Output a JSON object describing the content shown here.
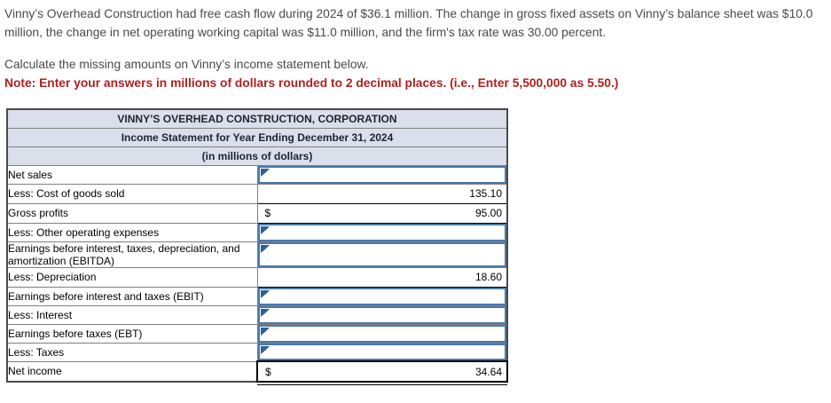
{
  "intro": {
    "paragraph": "Vinny’s Overhead Construction had free cash flow during 2024 of $36.1 million. The change in gross fixed assets on Vinny’s balance sheet was $10.0 million, the change in net operating working capital was $11.0 million, and the firm's tax rate was 30.00 percent.",
    "instruction": "Calculate the missing amounts on Vinny’s income statement below.",
    "note": "Note: Enter your answers in millions of dollars rounded to 2 decimal places. (i.e., Enter 5,500,000 as 5.50.)"
  },
  "table": {
    "title": "VINNY’S OVERHEAD CONSTRUCTION, CORPORATION",
    "subtitle": "Income Statement for Year Ending December 31, 2024",
    "units": "(in millions of dollars)",
    "rows": [
      {
        "key": "net-sales",
        "label": "Net sales",
        "type": "input",
        "currency": "",
        "value": ""
      },
      {
        "key": "cost-of-goods-sold",
        "label": "Less: Cost of goods sold",
        "type": "static",
        "currency": "",
        "value": "135.10"
      },
      {
        "key": "gross-profits",
        "label": "Gross profits",
        "type": "dollar",
        "currency": "$",
        "value": "95.00"
      },
      {
        "key": "other-operating-expenses",
        "label": "Less: Other operating expenses",
        "type": "input",
        "currency": "",
        "value": ""
      },
      {
        "key": "ebitda",
        "label": "Earnings before interest, taxes, depreciation, and amortization (EBITDA)",
        "type": "input",
        "currency": "",
        "value": ""
      },
      {
        "key": "depreciation",
        "label": "Less: Depreciation",
        "type": "static",
        "currency": "",
        "value": "18.60"
      },
      {
        "key": "ebit",
        "label": "Earnings before interest and taxes (EBIT)",
        "type": "input",
        "currency": "",
        "value": ""
      },
      {
        "key": "interest",
        "label": "Less: Interest",
        "type": "input",
        "currency": "",
        "value": ""
      },
      {
        "key": "ebt",
        "label": "Earnings before taxes (EBT)",
        "type": "input",
        "currency": "",
        "value": ""
      },
      {
        "key": "taxes",
        "label": "Less: Taxes",
        "type": "input",
        "currency": "",
        "value": ""
      },
      {
        "key": "net-income",
        "label": "Net income",
        "type": "total",
        "currency": "$",
        "value": "34.64"
      }
    ]
  },
  "colors": {
    "page-bg": "#ffffff",
    "text-gray": "#4a4a4a",
    "note-red": "#b01e1e",
    "header-bg": "#dadfeb",
    "header-text": "#1c2433",
    "grid-gray": "#808080",
    "outer-border": "#4a4a4a",
    "cell-black": "#000000",
    "input-border": "#4a78a8",
    "marker-blue": "#2e6191"
  }
}
